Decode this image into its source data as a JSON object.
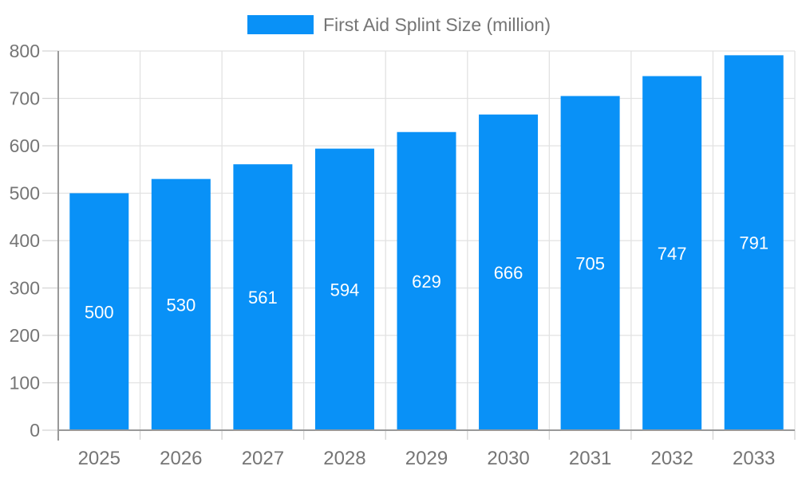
{
  "chart_data": {
    "type": "bar",
    "title": "First Aid Splint Size (million)",
    "categories": [
      "2025",
      "2026",
      "2027",
      "2028",
      "2029",
      "2030",
      "2031",
      "2032",
      "2033"
    ],
    "values": [
      500,
      530,
      561,
      594,
      629,
      666,
      705,
      747,
      791
    ],
    "xlabel": "",
    "ylabel": "",
    "ylim": [
      0,
      800
    ],
    "yticks": [
      0,
      100,
      200,
      300,
      400,
      500,
      600,
      700,
      800
    ],
    "grid": true,
    "legend_position": "top-center",
    "value_labels": "inside-bar-center",
    "bar_color": "#0991f7",
    "value_label_color": "#ffffff",
    "axis_text_color": "#757575",
    "grid_color": "#e2e2e2",
    "tick_color": "#d4d4d4",
    "axis_line_color": "#999999"
  }
}
